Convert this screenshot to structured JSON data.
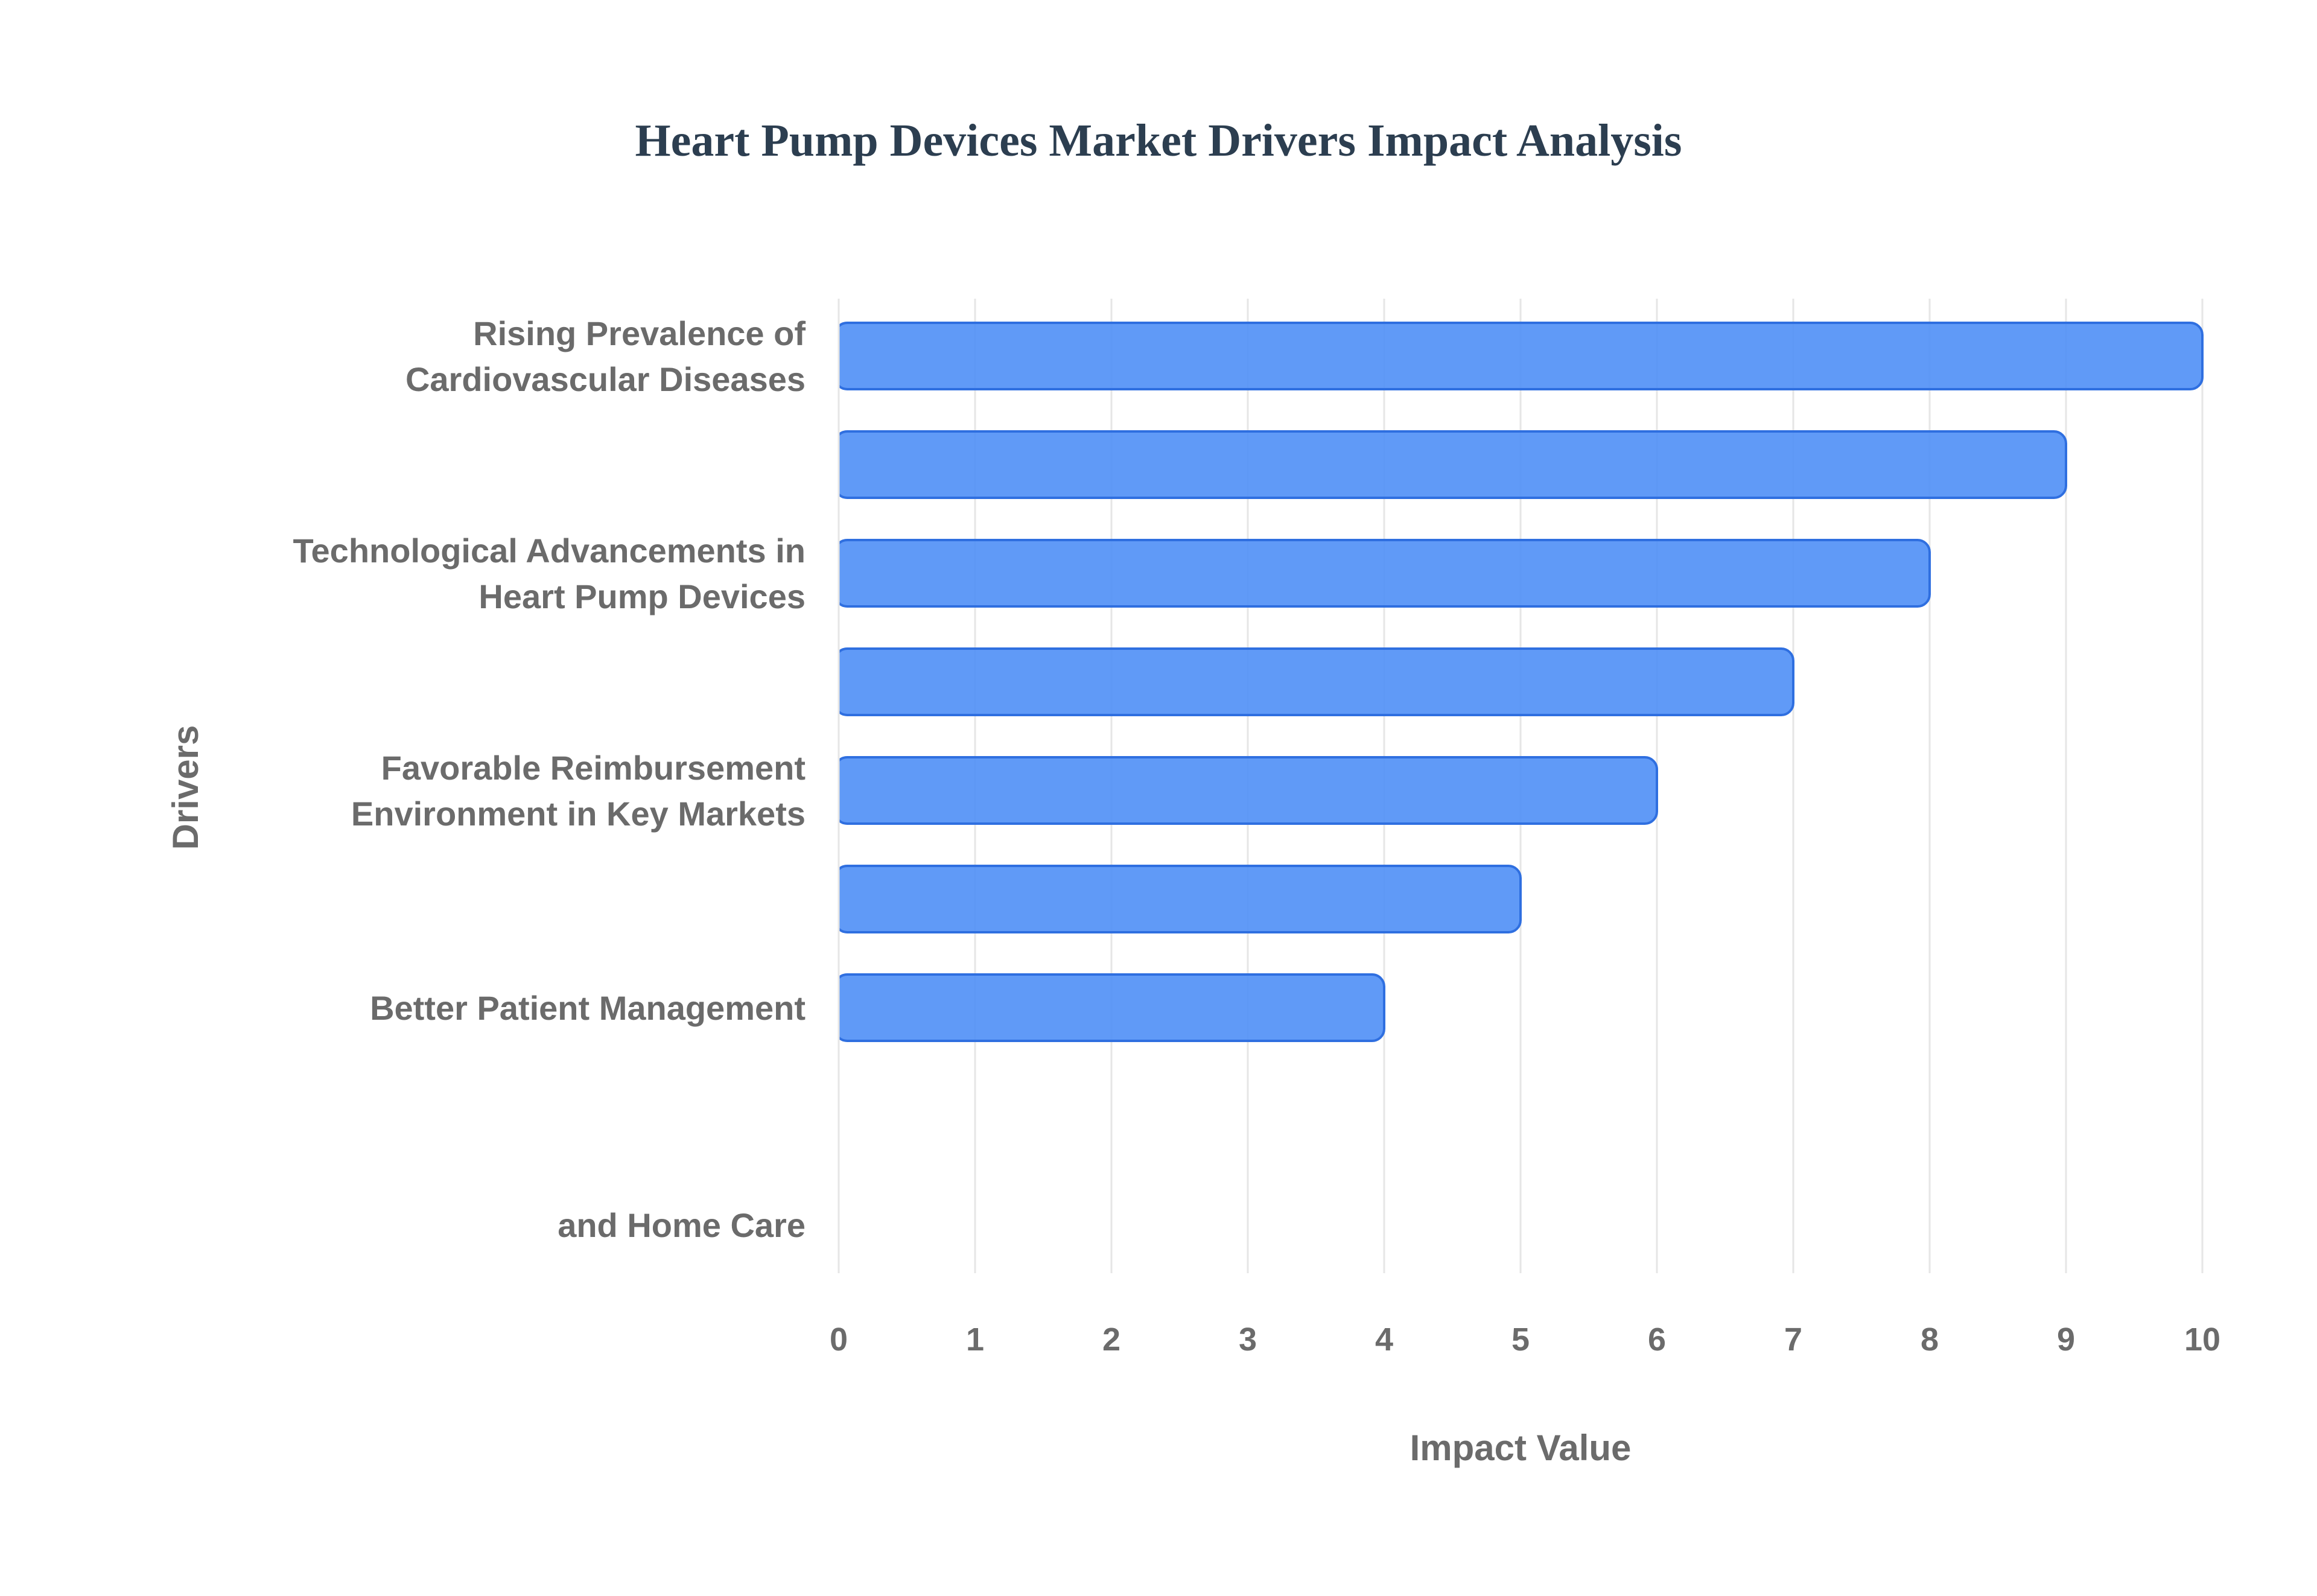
{
  "chart_data": {
    "type": "bar",
    "orientation": "horizontal",
    "title": "Heart Pump Devices Market Drivers Impact Analysis",
    "xlabel": "Impact Value",
    "ylabel": "Drivers",
    "xlim": [
      0,
      10
    ],
    "x_ticks": [
      "0",
      "1",
      "2",
      "3",
      "4",
      "5",
      "6",
      "7",
      "8",
      "9",
      "10"
    ],
    "grid": true,
    "legend": "none",
    "categories": [
      [
        "Rising Prevalence of",
        "Cardiovascular Diseases"
      ],
      [],
      [
        "Technological Advancements in",
        "Heart Pump Devices"
      ],
      [],
      [
        "Favorable Reimbursement",
        "Environment in Key Markets"
      ],
      [],
      [
        "Better Patient Management"
      ],
      [],
      [
        "and Home Care"
      ]
    ],
    "values": [
      10,
      9,
      8,
      7,
      6,
      5,
      4,
      null,
      null
    ],
    "colors": {
      "bar_fill": "#4f8ff6",
      "bar_stroke": "#2f6fe0",
      "title": "#2c3e50",
      "axis_text": "#6b6b6b",
      "grid": "#e6e6e6"
    }
  }
}
